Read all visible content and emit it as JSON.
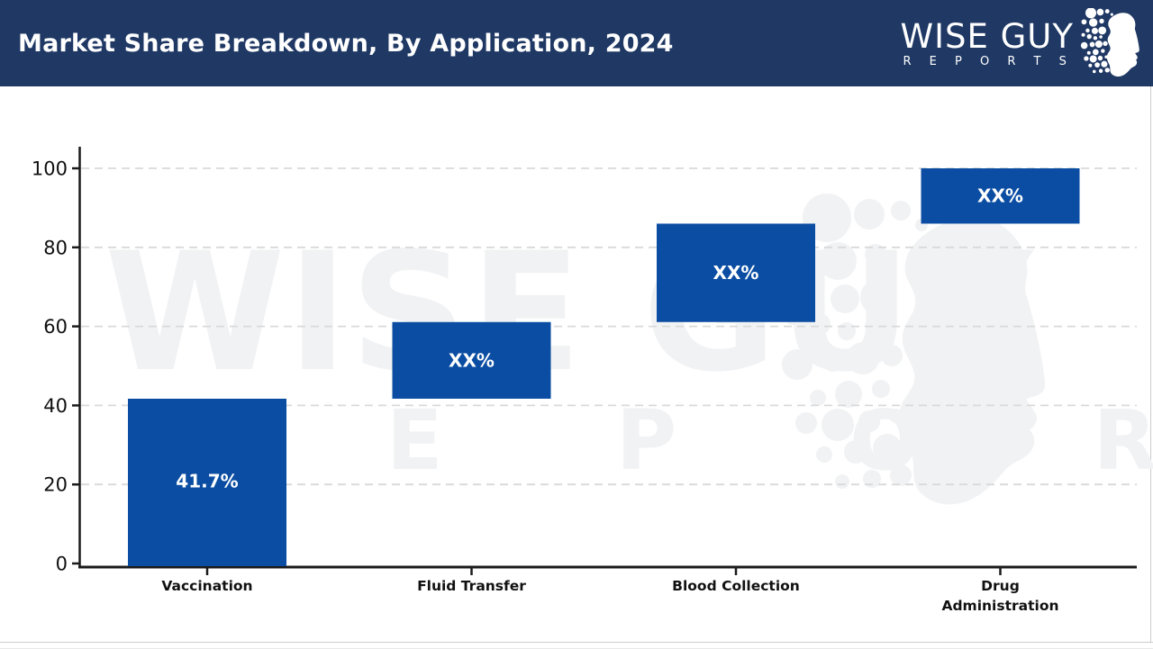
{
  "header": {
    "title": "Market Share Breakdown, By Application, 2024",
    "logo": {
      "line1": "WISE GUY",
      "line2": "R E P O R T S"
    }
  },
  "watermark": {
    "line1": "WISE GUY",
    "line2": "R E P O R T S"
  },
  "colors": {
    "header_bg": "#1f3864",
    "bar": "#0b4da2",
    "grid": "#d9d9d9",
    "axis": "#1a1a1a",
    "tick_label": "#111111",
    "value_label": "#ffffff",
    "watermark": "#f1f2f4"
  },
  "chart_data": {
    "type": "bar",
    "subtype": "waterfall",
    "title": "Market Share Breakdown, By Application, 2024",
    "categories": [
      "Vaccination",
      "Fluid Transfer",
      "Blood Collection",
      "Drug Administration"
    ],
    "segments": [
      {
        "category": "Vaccination",
        "label_lines": [
          "Vaccination"
        ],
        "start": 0,
        "end": 41.7,
        "value_label": "41.7%"
      },
      {
        "category": "Fluid Transfer",
        "label_lines": [
          "Fluid Transfer"
        ],
        "start": 41.7,
        "end": 61.1,
        "value_label": "XX%"
      },
      {
        "category": "Blood Collection",
        "label_lines": [
          "Blood Collection"
        ],
        "start": 61.1,
        "end": 86.0,
        "value_label": "XX%"
      },
      {
        "category": "Drug Administration",
        "label_lines": [
          "Drug",
          "Administration"
        ],
        "start": 86.0,
        "end": 100,
        "value_label": "XX%"
      }
    ],
    "xlabel": "",
    "ylabel": "",
    "ylim": [
      0,
      105
    ],
    "yticks": [
      0,
      20,
      40,
      60,
      80,
      100
    ],
    "grid": "horizontal-dashed",
    "legend": null
  }
}
